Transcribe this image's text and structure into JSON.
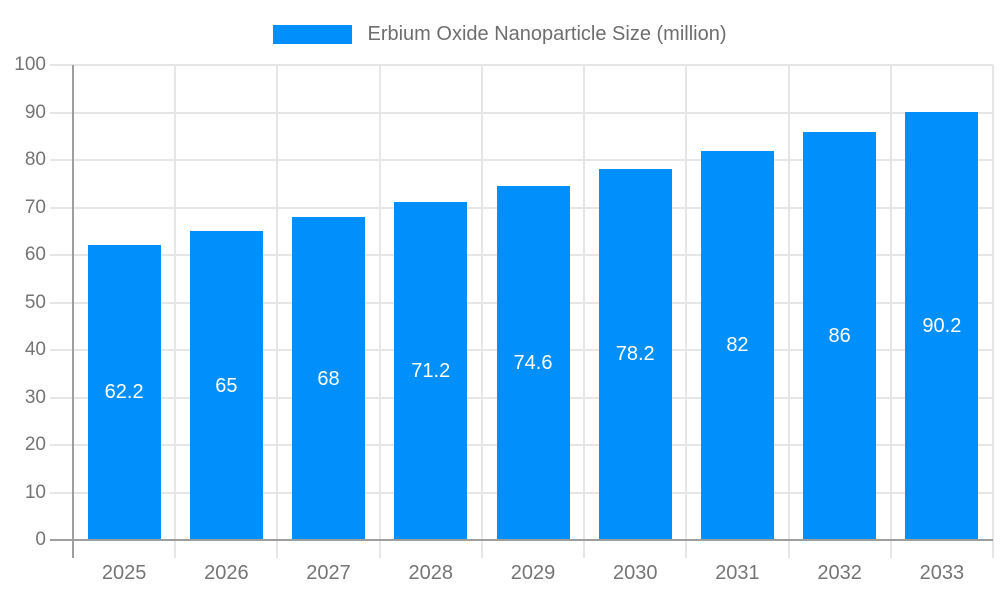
{
  "legend": {
    "label": "Erbium Oxide Nanoparticle Size (million)"
  },
  "chart_data": {
    "type": "bar",
    "title": "Erbium Oxide Nanoparticle Size (million)",
    "categories": [
      "2025",
      "2026",
      "2027",
      "2028",
      "2029",
      "2030",
      "2031",
      "2032",
      "2033"
    ],
    "values": [
      62.2,
      65,
      68,
      71.2,
      74.6,
      78.2,
      82,
      86,
      90.2
    ],
    "value_labels": [
      "62.2",
      "65",
      "68",
      "71.2",
      "74.6",
      "78.2",
      "82",
      "86",
      "90.2"
    ],
    "xlabel": "",
    "ylabel": "",
    "ylim": [
      0,
      100
    ],
    "ytick_step": 10,
    "ytick_labels": [
      "0",
      "10",
      "20",
      "30",
      "40",
      "50",
      "60",
      "70",
      "80",
      "90",
      "100"
    ],
    "grid": "both",
    "legend_position": "top",
    "colors": {
      "bar": "#008FFB",
      "bar_label": "#FFFFFF",
      "axis_text": "#757575",
      "legend_text": "#6E6E6E",
      "grid_line": "#E6E6E6",
      "axis_line": "#9E9E9E"
    }
  }
}
